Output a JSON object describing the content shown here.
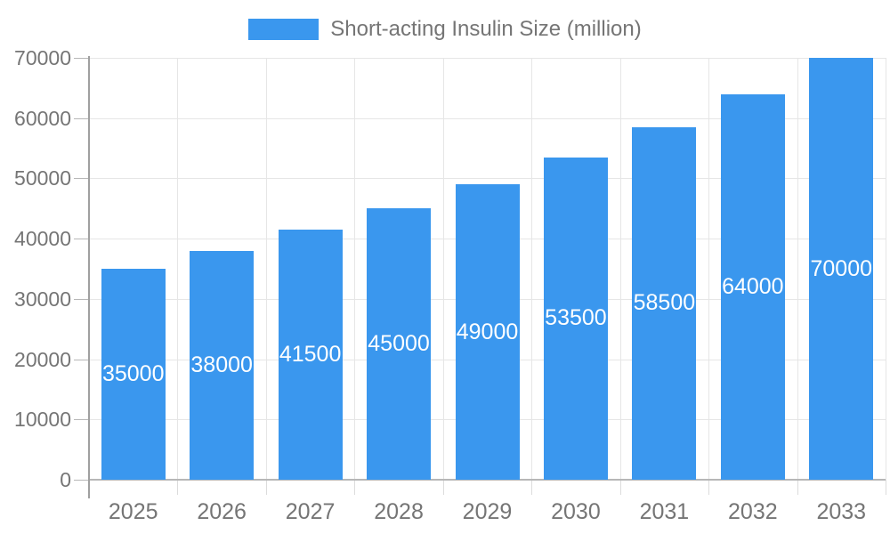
{
  "chart_data": {
    "type": "bar",
    "categories": [
      "2025",
      "2026",
      "2027",
      "2028",
      "2029",
      "2030",
      "2031",
      "2032",
      "2033"
    ],
    "series": [
      {
        "name": "Short-acting Insulin Size (million)",
        "values": [
          35000,
          38000,
          41500,
          45000,
          49000,
          53500,
          58500,
          64000,
          70000
        ]
      }
    ],
    "bar_value_labels": [
      "35000",
      "38000",
      "41500",
      "45000",
      "49000",
      "53500",
      "58500",
      "64000",
      "70000"
    ],
    "xlabel": "",
    "ylabel": "",
    "ylim": [
      0,
      70000
    ],
    "ytick_step": 10000,
    "ytick_labels": [
      "0",
      "10000",
      "20000",
      "30000",
      "40000",
      "50000",
      "60000",
      "70000"
    ],
    "legend_position": "top-center",
    "grid": "on",
    "value_labels_position": "centered-inside-bars"
  },
  "colors": {
    "bar": "#3A97EE",
    "gridline": "#E6E6E6",
    "axis_line": "#A0A0A0",
    "baseline": "#B7B7B7",
    "tick": "#B7B7B7",
    "axis_text": "#757575",
    "bar_label_text": "#FFFFFF",
    "background": "#FFFFFF"
  }
}
